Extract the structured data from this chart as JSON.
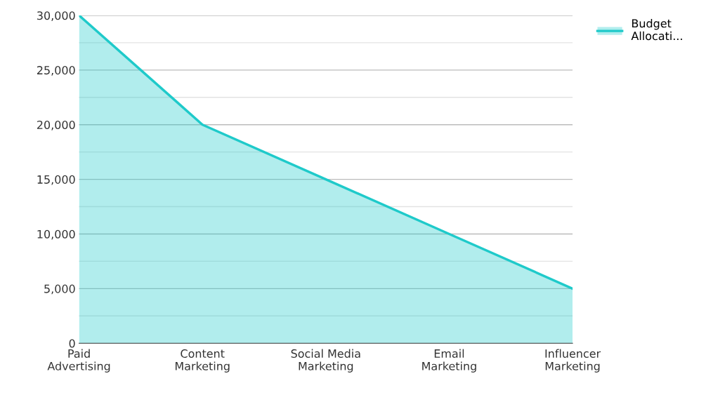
{
  "chart_data": {
    "type": "area",
    "categories": [
      "Paid\nAdvertising",
      "Content\nMarketing",
      "Social Media\nMarketing",
      "Email\nMarketing",
      "Influencer\nMarketing"
    ],
    "series": [
      {
        "name": "Budget\nAllocati...",
        "color": "#1fcaca",
        "values": [
          30000,
          20000,
          15000,
          10000,
          5000
        ]
      }
    ],
    "ylim": [
      0,
      30000
    ],
    "yticks": [
      0,
      {
        "value": 2500,
        "label": null
      },
      {
        "value": 5000,
        "label": "5,000"
      },
      {
        "value": 7500,
        "label": null
      },
      {
        "value": 10000,
        "label": "10,000"
      },
      {
        "value": 12500,
        "label": null
      },
      {
        "value": 15000,
        "label": "15,000"
      },
      {
        "value": 17500,
        "label": null
      },
      {
        "value": 20000,
        "label": "20,000"
      },
      {
        "value": 22500,
        "label": null
      },
      {
        "value": 25000,
        "label": "25,000"
      },
      {
        "value": 27500,
        "label": null
      },
      {
        "value": 30000,
        "label": "30,000"
      }
    ],
    "grid": "y",
    "legend": "top right"
  }
}
